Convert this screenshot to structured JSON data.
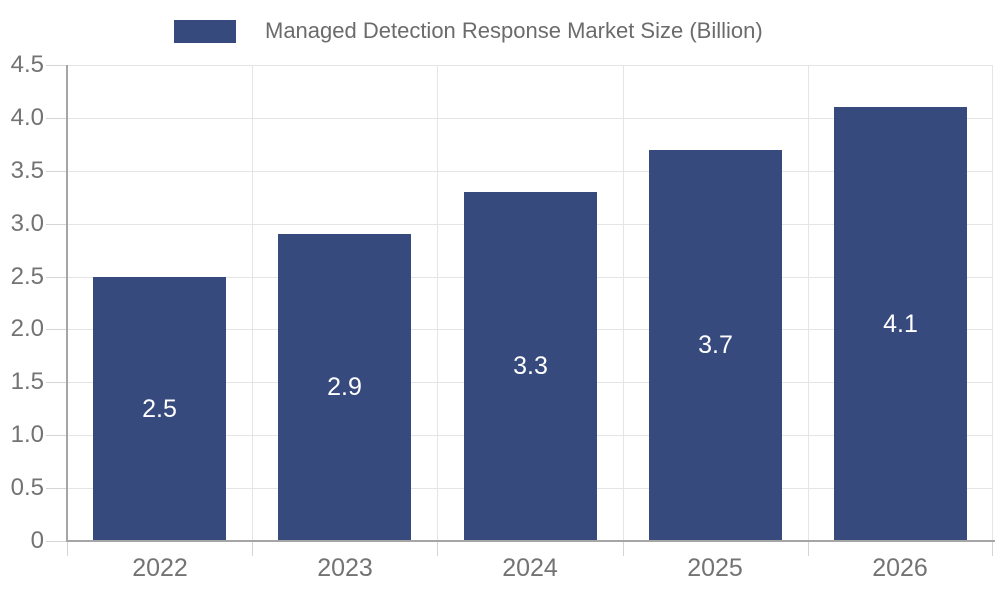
{
  "chart_data": {
    "type": "bar",
    "title": "Managed Detection Response Market Size (Billion)",
    "legend": {
      "label": "Managed Detection Response Market Size (Billion)",
      "position": "top"
    },
    "categories": [
      "2022",
      "2023",
      "2024",
      "2025",
      "2026"
    ],
    "values": [
      2.5,
      2.9,
      3.3,
      3.7,
      4.1
    ],
    "bar_labels": [
      "2.5",
      "2.9",
      "3.3",
      "3.7",
      "4.1"
    ],
    "xlabel": "",
    "ylabel": "",
    "ylim": [
      0,
      4.5
    ],
    "yticks": [
      "0",
      "0.5",
      "1.0",
      "1.5",
      "2.0",
      "2.5",
      "3.0",
      "3.5",
      "4.0",
      "4.5"
    ],
    "grid": true,
    "colors": {
      "bar": "#374A7E",
      "grid": "#e5e5e5",
      "axis": "#a5a5a5",
      "tick": "#d4d4d4",
      "tick_label_text": "#737373",
      "legend_text": "#6b6b6b",
      "value_label_text": "#ffffff",
      "background": "#ffffff"
    }
  }
}
